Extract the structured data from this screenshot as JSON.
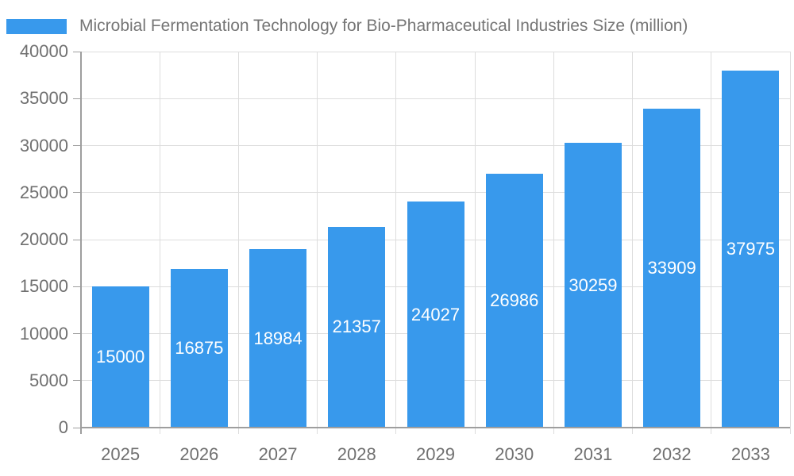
{
  "legend": {
    "label": "Microbial Fermentation Technology for Bio-Pharmaceutical Industries Size (million)"
  },
  "chart_data": {
    "type": "bar",
    "title": "Microbial Fermentation Technology for Bio-Pharmaceutical Industries Size (million)",
    "categories": [
      "2025",
      "2026",
      "2027",
      "2028",
      "2029",
      "2030",
      "2031",
      "2032",
      "2033"
    ],
    "values": [
      15000,
      16875,
      18984,
      21357,
      24027,
      26986,
      30259,
      33909,
      37975
    ],
    "xlabel": "",
    "ylabel": "",
    "ylim": [
      0,
      40000
    ],
    "yticks": [
      0,
      5000,
      10000,
      15000,
      20000,
      25000,
      30000,
      35000,
      40000
    ],
    "grid": true,
    "legend_position": "top-left",
    "value_labels_position": "inside-center",
    "colors": {
      "bar": "#3899EC",
      "grid": "#DDDDDD",
      "axis": "#9E9E9E",
      "tick_text": "#707070",
      "value_label_text": "#FFFFFF",
      "background": "#FFFFFF"
    }
  }
}
